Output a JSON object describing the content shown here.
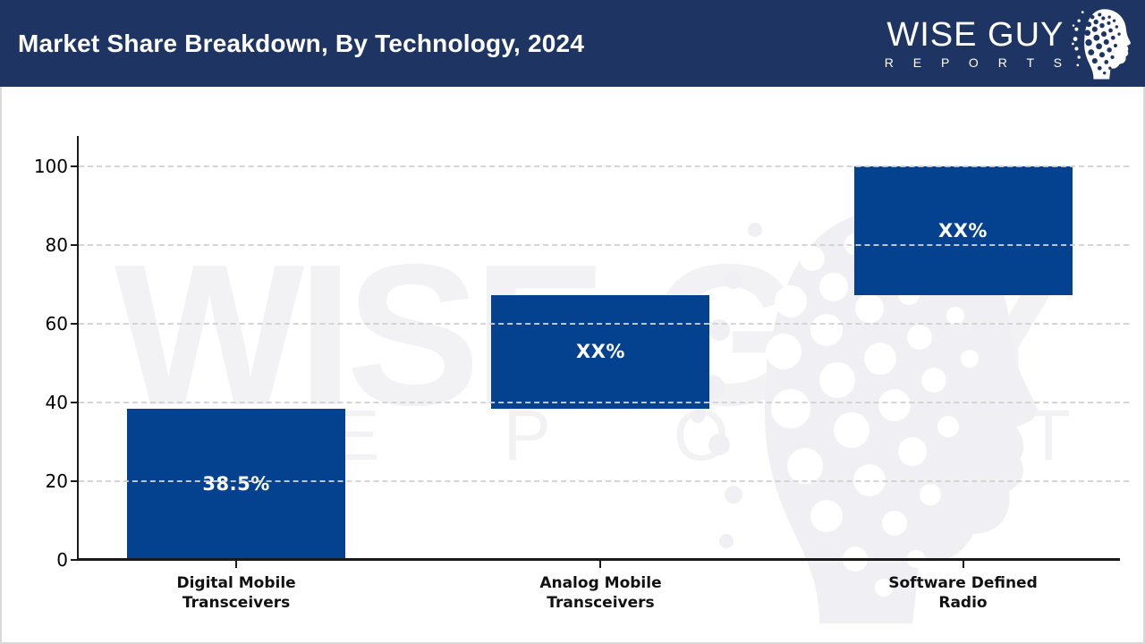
{
  "header": {
    "title": "Market Share Breakdown, By Technology, 2024",
    "background_color": "#1e3563",
    "logo": {
      "line1": "WISE GUY",
      "line2": "R E P O R T S",
      "icon": "dotted-head-profile"
    }
  },
  "watermark": {
    "line1": "WISE GUY",
    "line2": "R E P O R T S",
    "icon": "dotted-head-profile"
  },
  "chart_data": {
    "type": "bar",
    "subtype": "floating-segment-waterfall",
    "title": "Market Share Breakdown, By Technology, 2024",
    "categories": [
      "Digital Mobile Transceivers",
      "Analog Mobile Transceivers",
      "Software Defined Radio"
    ],
    "bars": [
      {
        "category": "Digital Mobile Transceivers",
        "category_lines": [
          "Digital Mobile",
          "Transceivers"
        ],
        "label": "38.5%",
        "from": 0,
        "to": 38.5
      },
      {
        "category": "Analog Mobile Transceivers",
        "category_lines": [
          "Analog Mobile",
          "Transceivers"
        ],
        "label": "XX%",
        "from": 38.5,
        "to": 67.3
      },
      {
        "category": "Software Defined Radio",
        "category_lines": [
          "Software Defined",
          "Radio"
        ],
        "label": "XX%",
        "from": 67.3,
        "to": 100
      }
    ],
    "y_ticks": [
      0,
      20,
      40,
      60,
      80,
      100
    ],
    "ylim": [
      0,
      107
    ],
    "xlabel": "",
    "ylabel": "",
    "grid": "dashed-horizontal-over-bars",
    "legend": "none",
    "bar_color": "#04428f",
    "bar_label_color": "#ffffff",
    "axis_color": "#1a1a1a",
    "gridline_color": "#d2d2d2"
  }
}
